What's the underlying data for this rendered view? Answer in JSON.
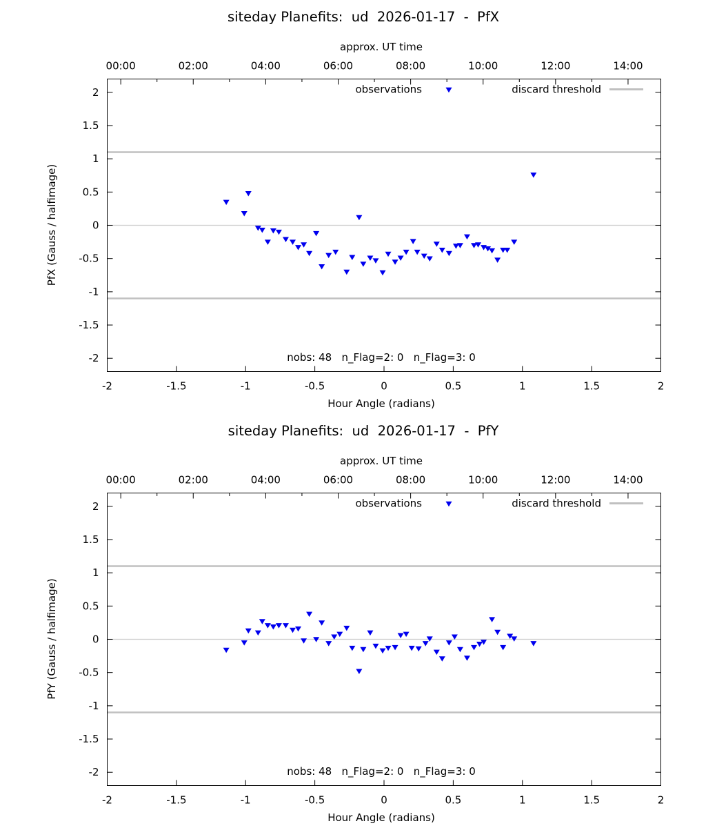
{
  "page": {
    "background": "#ffffff"
  },
  "chart_data": [
    {
      "type": "scatter",
      "title": "siteday Planefits:  ud  2026-01-17  -  PfX",
      "x2label": "approx. UT time",
      "xlabel": "Hour Angle (radians)",
      "ylabel": "PfX (Gauss / halfimage)",
      "xlim": [
        -2,
        2
      ],
      "ylim": [
        -2.2,
        2.2
      ],
      "grid": false,
      "legend_position": "top-right-inside",
      "xticks": [
        {
          "v": -2,
          "t": "-2"
        },
        {
          "v": -1.5,
          "t": "-1.5"
        },
        {
          "v": -1,
          "t": "-1"
        },
        {
          "v": -0.5,
          "t": "-0.5"
        },
        {
          "v": 0,
          "t": "0"
        },
        {
          "v": 0.5,
          "t": "0.5"
        },
        {
          "v": 1,
          "t": "1"
        },
        {
          "v": 1.5,
          "t": "1.5"
        },
        {
          "v": 2,
          "t": "2"
        }
      ],
      "yticks": [
        {
          "v": -2,
          "t": "-2"
        },
        {
          "v": -1.5,
          "t": "-1.5"
        },
        {
          "v": -1,
          "t": "-1"
        },
        {
          "v": -0.5,
          "t": "-0.5"
        },
        {
          "v": 0,
          "t": "0"
        },
        {
          "v": 0.5,
          "t": "0.5"
        },
        {
          "v": 1,
          "t": "1"
        },
        {
          "v": 1.5,
          "t": "1.5"
        },
        {
          "v": 2,
          "t": "2"
        }
      ],
      "x2ticks": [
        {
          "v": -1.9021,
          "t": "00:00"
        },
        {
          "v": -1.3785,
          "t": "02:00"
        },
        {
          "v": -0.8549,
          "t": "04:00"
        },
        {
          "v": -0.3313,
          "t": "06:00"
        },
        {
          "v": 0.1923,
          "t": "08:00"
        },
        {
          "v": 0.7159,
          "t": "10:00"
        },
        {
          "v": 1.2395,
          "t": "12:00"
        },
        {
          "v": 1.7631,
          "t": "14:00"
        }
      ],
      "zero_line_y": 0,
      "threshold_y": [
        1.1,
        -1.1
      ],
      "legend": {
        "observations_label": "observations",
        "threshold_label": "discard threshold"
      },
      "annotation": "nobs: 48   n_Flag=2: 0   n_Flag=3: 0",
      "colors": {
        "points": "#0000ee",
        "threshold": "#c0c0c0",
        "zero_line": "#cccccc",
        "axis": "#000000"
      },
      "series": [
        {
          "name": "observations",
          "marker": "triangle-down",
          "points": [
            [
              -1.14,
              0.35
            ],
            [
              -1.01,
              0.18
            ],
            [
              -0.98,
              0.48
            ],
            [
              -0.91,
              -0.04
            ],
            [
              -0.88,
              -0.07
            ],
            [
              -0.84,
              -0.25
            ],
            [
              -0.8,
              -0.08
            ],
            [
              -0.76,
              -0.1
            ],
            [
              -0.71,
              -0.21
            ],
            [
              -0.66,
              -0.25
            ],
            [
              -0.62,
              -0.33
            ],
            [
              -0.58,
              -0.29
            ],
            [
              -0.54,
              -0.42
            ],
            [
              -0.49,
              -0.12
            ],
            [
              -0.45,
              -0.62
            ],
            [
              -0.4,
              -0.45
            ],
            [
              -0.35,
              -0.4
            ],
            [
              -0.27,
              -0.7
            ],
            [
              -0.23,
              -0.48
            ],
            [
              -0.18,
              0.12
            ],
            [
              -0.15,
              -0.58
            ],
            [
              -0.1,
              -0.49
            ],
            [
              -0.06,
              -0.53
            ],
            [
              -0.01,
              -0.71
            ],
            [
              0.03,
              -0.43
            ],
            [
              0.08,
              -0.55
            ],
            [
              0.12,
              -0.49
            ],
            [
              0.16,
              -0.4
            ],
            [
              0.21,
              -0.24
            ],
            [
              0.24,
              -0.4
            ],
            [
              0.29,
              -0.46
            ],
            [
              0.33,
              -0.5
            ],
            [
              0.38,
              -0.28
            ],
            [
              0.42,
              -0.37
            ],
            [
              0.47,
              -0.42
            ],
            [
              0.52,
              -0.31
            ],
            [
              0.55,
              -0.3
            ],
            [
              0.6,
              -0.17
            ],
            [
              0.65,
              -0.3
            ],
            [
              0.68,
              -0.29
            ],
            [
              0.72,
              -0.33
            ],
            [
              0.75,
              -0.35
            ],
            [
              0.78,
              -0.38
            ],
            [
              0.82,
              -0.52
            ],
            [
              0.86,
              -0.37
            ],
            [
              0.89,
              -0.37
            ],
            [
              0.94,
              -0.25
            ],
            [
              1.08,
              0.76
            ]
          ]
        }
      ]
    },
    {
      "type": "scatter",
      "title": "siteday Planefits:  ud  2026-01-17  -  PfY",
      "x2label": "approx. UT time",
      "xlabel": "Hour Angle (radians)",
      "ylabel": "PfY (Gauss / halfimage)",
      "xlim": [
        -2,
        2
      ],
      "ylim": [
        -2.2,
        2.2
      ],
      "grid": false,
      "legend_position": "top-right-inside",
      "xticks": [
        {
          "v": -2,
          "t": "-2"
        },
        {
          "v": -1.5,
          "t": "-1.5"
        },
        {
          "v": -1,
          "t": "-1"
        },
        {
          "v": -0.5,
          "t": "-0.5"
        },
        {
          "v": 0,
          "t": "0"
        },
        {
          "v": 0.5,
          "t": "0.5"
        },
        {
          "v": 1,
          "t": "1"
        },
        {
          "v": 1.5,
          "t": "1.5"
        },
        {
          "v": 2,
          "t": "2"
        }
      ],
      "yticks": [
        {
          "v": -2,
          "t": "-2"
        },
        {
          "v": -1.5,
          "t": "-1.5"
        },
        {
          "v": -1,
          "t": "-1"
        },
        {
          "v": -0.5,
          "t": "-0.5"
        },
        {
          "v": 0,
          "t": "0"
        },
        {
          "v": 0.5,
          "t": "0.5"
        },
        {
          "v": 1,
          "t": "1"
        },
        {
          "v": 1.5,
          "t": "1.5"
        },
        {
          "v": 2,
          "t": "2"
        }
      ],
      "x2ticks": [
        {
          "v": -1.9021,
          "t": "00:00"
        },
        {
          "v": -1.3785,
          "t": "02:00"
        },
        {
          "v": -0.8549,
          "t": "04:00"
        },
        {
          "v": -0.3313,
          "t": "06:00"
        },
        {
          "v": 0.1923,
          "t": "08:00"
        },
        {
          "v": 0.7159,
          "t": "10:00"
        },
        {
          "v": 1.2395,
          "t": "12:00"
        },
        {
          "v": 1.7631,
          "t": "14:00"
        }
      ],
      "zero_line_y": 0,
      "threshold_y": [
        1.1,
        -1.1
      ],
      "legend": {
        "observations_label": "observations",
        "threshold_label": "discard threshold"
      },
      "annotation": "nobs: 48   n_Flag=2: 0   n_Flag=3: 0",
      "colors": {
        "points": "#0000ee",
        "threshold": "#c0c0c0",
        "zero_line": "#cccccc",
        "axis": "#000000"
      },
      "series": [
        {
          "name": "observations",
          "marker": "triangle-down",
          "points": [
            [
              -1.14,
              -0.16
            ],
            [
              -1.01,
              -0.05
            ],
            [
              -0.98,
              0.13
            ],
            [
              -0.91,
              0.1
            ],
            [
              -0.88,
              0.27
            ],
            [
              -0.84,
              0.21
            ],
            [
              -0.8,
              0.19
            ],
            [
              -0.76,
              0.21
            ],
            [
              -0.71,
              0.21
            ],
            [
              -0.66,
              0.14
            ],
            [
              -0.62,
              0.16
            ],
            [
              -0.58,
              -0.02
            ],
            [
              -0.54,
              0.38
            ],
            [
              -0.49,
              0.0
            ],
            [
              -0.45,
              0.25
            ],
            [
              -0.4,
              -0.06
            ],
            [
              -0.36,
              0.04
            ],
            [
              -0.32,
              0.08
            ],
            [
              -0.27,
              0.17
            ],
            [
              -0.23,
              -0.13
            ],
            [
              -0.18,
              -0.48
            ],
            [
              -0.15,
              -0.15
            ],
            [
              -0.1,
              0.1
            ],
            [
              -0.06,
              -0.1
            ],
            [
              -0.01,
              -0.17
            ],
            [
              0.03,
              -0.13
            ],
            [
              0.08,
              -0.12
            ],
            [
              0.12,
              0.06
            ],
            [
              0.16,
              0.08
            ],
            [
              0.2,
              -0.13
            ],
            [
              0.25,
              -0.14
            ],
            [
              0.3,
              -0.06
            ],
            [
              0.33,
              0.01
            ],
            [
              0.38,
              -0.19
            ],
            [
              0.42,
              -0.29
            ],
            [
              0.47,
              -0.05
            ],
            [
              0.51,
              0.04
            ],
            [
              0.55,
              -0.15
            ],
            [
              0.6,
              -0.28
            ],
            [
              0.65,
              -0.12
            ],
            [
              0.69,
              -0.07
            ],
            [
              0.72,
              -0.04
            ],
            [
              0.78,
              0.3
            ],
            [
              0.82,
              0.11
            ],
            [
              0.86,
              -0.12
            ],
            [
              0.91,
              0.05
            ],
            [
              0.94,
              0.01
            ],
            [
              1.08,
              -0.06
            ]
          ]
        }
      ]
    }
  ]
}
